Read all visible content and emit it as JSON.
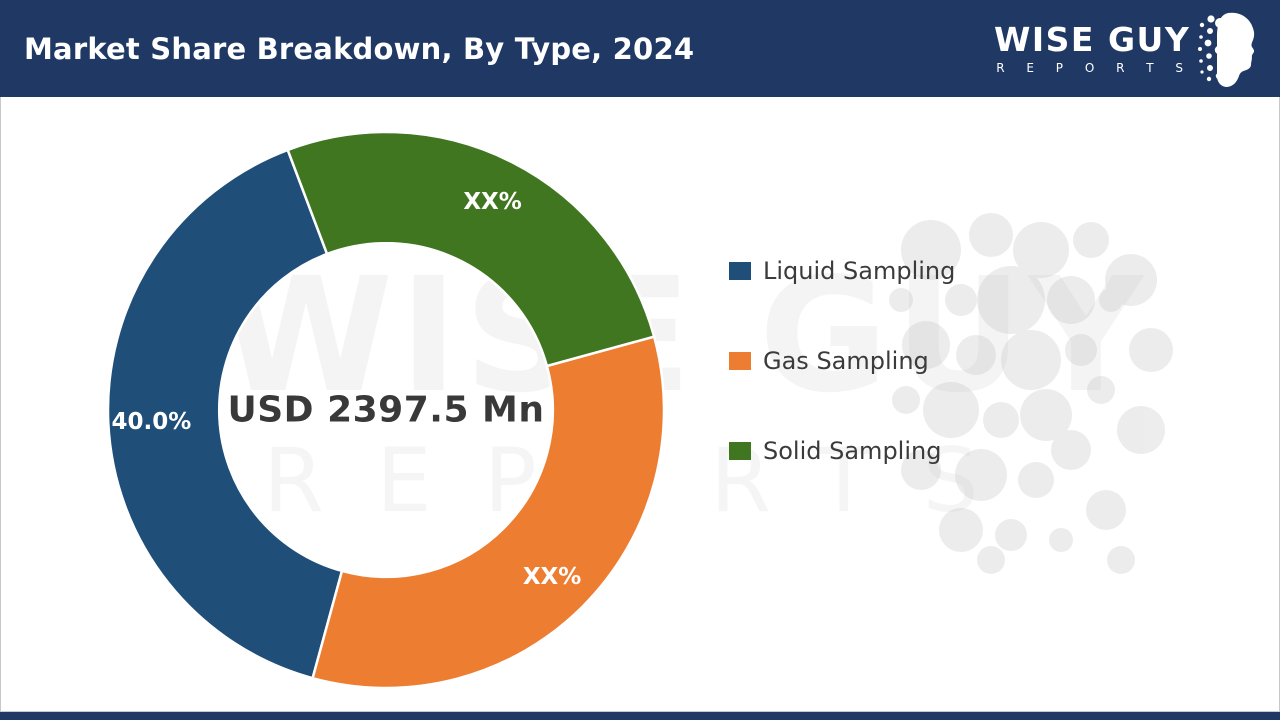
{
  "header": {
    "title": "Market Share Breakdown, By Type, 2024",
    "background_color": "#1f3864",
    "logo": {
      "brand": "WISE GUY",
      "brand_sub": "R E P O R T S"
    }
  },
  "watermark": {
    "brand": "WISE GUY",
    "brand_sub": "REPORTS"
  },
  "chart_data": {
    "type": "pie",
    "subtype": "donut",
    "title": "Market Share Breakdown, By Type, 2024",
    "center_label": "USD 2397.5 Mn",
    "donut_hole_ratio": 0.6,
    "outer_radius_px": 278,
    "start_angle_deg": 110.7,
    "direction": "counterclockwise",
    "pct_label_distance": 0.845,
    "legend_position": "right",
    "segments": [
      {
        "name": "Liquid Sampling",
        "value_pct_est": 40.0,
        "label": "40.0%",
        "color": "#1f4e79"
      },
      {
        "name": "Gas Sampling",
        "value_pct_est": 33.5,
        "label": "XX%",
        "color": "#ed7d31"
      },
      {
        "name": "Solid Sampling",
        "value_pct_est": 26.5,
        "label": "XX%",
        "color": "#417620"
      }
    ]
  },
  "footer": {
    "background_color": "#1f3864"
  }
}
